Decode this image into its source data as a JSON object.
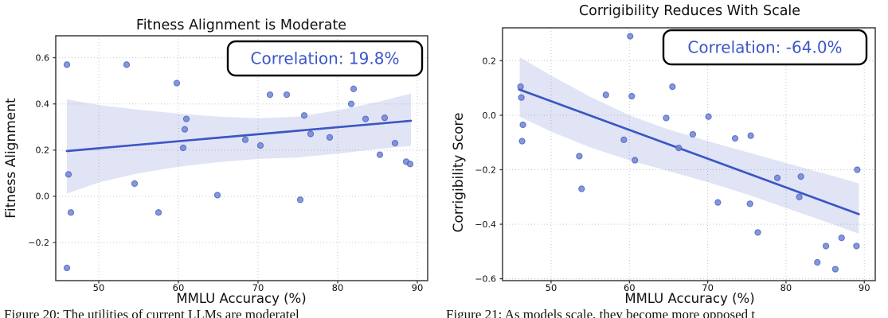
{
  "page": {
    "background": "#ffffff"
  },
  "captions": [
    "Figure 20: The utilities of current LLMs are moderatel",
    "Figure 21: As models scale, they become more opposed t"
  ],
  "colors": {
    "accent_line": "#3d56c4",
    "point_fill": "#7086d5",
    "point_edge": "#4459c0",
    "band_fill": "#3f57c0",
    "grid": "#c6c6c6",
    "spine": "#2d2d2d",
    "text": "#101010",
    "annotation_text": "#3c55c8",
    "annotation_border": "#000000"
  },
  "chart_data": [
    {
      "type": "scatter",
      "title": "Fitness Alignment is Moderate",
      "xlabel": "MMLU Accuracy (%)",
      "ylabel": "Fitness Alignment",
      "annotation": "Correlation: 19.8%",
      "grid": true,
      "legend": "none",
      "xlim": [
        44.6,
        91.3
      ],
      "ylim": [
        -0.365,
        0.695
      ],
      "xticks": [
        50,
        60,
        70,
        80,
        90
      ],
      "yticks": [
        0.6,
        0.4,
        0.2,
        0.0,
        -0.2
      ],
      "trend_line": {
        "x": [
          46.0,
          89.2
        ],
        "y": [
          0.196,
          0.327
        ]
      },
      "band_upper": [
        [
          46,
          0.42
        ],
        [
          50,
          0.395
        ],
        [
          55,
          0.375
        ],
        [
          60,
          0.358
        ],
        [
          65,
          0.345
        ],
        [
          70,
          0.338
        ],
        [
          75,
          0.345
        ],
        [
          80,
          0.372
        ],
        [
          85,
          0.408
        ],
        [
          89.2,
          0.445
        ]
      ],
      "band_lower": [
        [
          46,
          0.012
        ],
        [
          50,
          0.06
        ],
        [
          55,
          0.1
        ],
        [
          60,
          0.128
        ],
        [
          65,
          0.148
        ],
        [
          70,
          0.162
        ],
        [
          75,
          0.168
        ],
        [
          80,
          0.185
        ],
        [
          85,
          0.205
        ],
        [
          89.2,
          0.218
        ]
      ],
      "points": [
        [
          46.0,
          0.57
        ],
        [
          53.5,
          0.57
        ],
        [
          59.8,
          0.49
        ],
        [
          71.5,
          0.44
        ],
        [
          73.6,
          0.44
        ],
        [
          82.0,
          0.465
        ],
        [
          81.7,
          0.4
        ],
        [
          61.0,
          0.335
        ],
        [
          60.8,
          0.29
        ],
        [
          60.6,
          0.21
        ],
        [
          68.4,
          0.245
        ],
        [
          70.3,
          0.22
        ],
        [
          75.8,
          0.35
        ],
        [
          76.6,
          0.27
        ],
        [
          79.0,
          0.255
        ],
        [
          83.5,
          0.335
        ],
        [
          85.9,
          0.34
        ],
        [
          85.3,
          0.18
        ],
        [
          87.2,
          0.23
        ],
        [
          88.6,
          0.15
        ],
        [
          89.1,
          0.14
        ],
        [
          46.2,
          0.095
        ],
        [
          54.5,
          0.055
        ],
        [
          64.9,
          0.005
        ],
        [
          75.3,
          -0.015
        ],
        [
          46.5,
          -0.07
        ],
        [
          57.5,
          -0.07
        ],
        [
          46.0,
          -0.31
        ]
      ]
    },
    {
      "type": "scatter",
      "title": "Corrigibility Reduces With Scale",
      "xlabel": "MMLU Accuracy (%)",
      "ylabel": "Corrigibility Score",
      "annotation": "Correlation: -64.0%",
      "grid": true,
      "legend": "none",
      "xlim": [
        43.8,
        91.4
      ],
      "ylim": [
        -0.607,
        0.321
      ],
      "xticks": [
        50,
        60,
        70,
        80,
        90
      ],
      "yticks": [
        0.2,
        0.0,
        -0.2,
        -0.4,
        -0.6
      ],
      "trend_line": {
        "x": [
          45.9,
          89.3
        ],
        "y": [
          0.095,
          -0.363
        ]
      },
      "band_upper": [
        [
          46,
          0.213
        ],
        [
          50,
          0.146
        ],
        [
          55,
          0.068
        ],
        [
          60,
          0.0
        ],
        [
          65,
          -0.052
        ],
        [
          70,
          -0.095
        ],
        [
          75,
          -0.135
        ],
        [
          80,
          -0.175
        ],
        [
          85,
          -0.215
        ],
        [
          89.3,
          -0.25
        ]
      ],
      "band_lower": [
        [
          46,
          -0.005
        ],
        [
          50,
          -0.06
        ],
        [
          55,
          -0.118
        ],
        [
          60,
          -0.165
        ],
        [
          65,
          -0.205
        ],
        [
          70,
          -0.245
        ],
        [
          75,
          -0.29
        ],
        [
          80,
          -0.34
        ],
        [
          85,
          -0.39
        ],
        [
          89.3,
          -0.435
        ]
      ],
      "points": [
        [
          46.1,
          0.105
        ],
        [
          46.2,
          0.065
        ],
        [
          57.0,
          0.075
        ],
        [
          60.1,
          0.29
        ],
        [
          60.3,
          0.07
        ],
        [
          65.5,
          0.105
        ],
        [
          46.4,
          -0.035
        ],
        [
          46.3,
          -0.095
        ],
        [
          59.3,
          -0.09
        ],
        [
          64.7,
          -0.01
        ],
        [
          70.1,
          -0.005
        ],
        [
          68.1,
          -0.07
        ],
        [
          73.5,
          -0.085
        ],
        [
          75.5,
          -0.075
        ],
        [
          66.3,
          -0.12
        ],
        [
          53.6,
          -0.15
        ],
        [
          60.7,
          -0.165
        ],
        [
          53.9,
          -0.27
        ],
        [
          78.9,
          -0.23
        ],
        [
          81.9,
          -0.225
        ],
        [
          81.7,
          -0.3
        ],
        [
          71.3,
          -0.32
        ],
        [
          75.4,
          -0.325
        ],
        [
          76.4,
          -0.43
        ],
        [
          84.0,
          -0.54
        ],
        [
          85.1,
          -0.48
        ],
        [
          86.3,
          -0.565
        ],
        [
          87.1,
          -0.45
        ],
        [
          89.0,
          -0.48
        ],
        [
          89.1,
          -0.2
        ]
      ]
    }
  ]
}
